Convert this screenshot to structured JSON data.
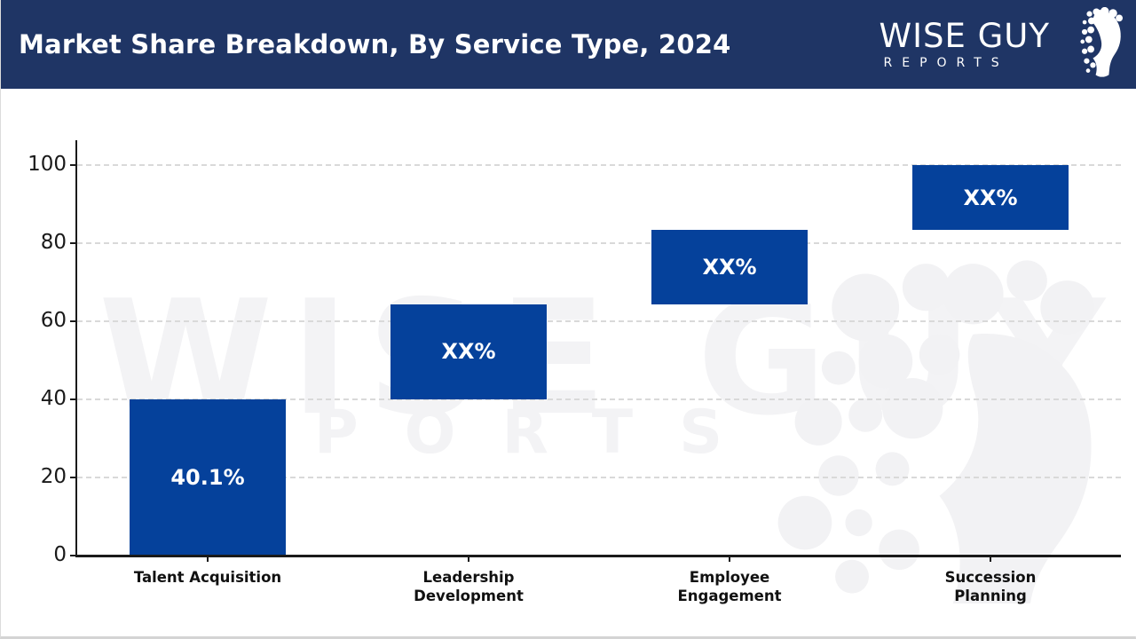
{
  "header": {
    "title": "Market Share Breakdown, By Service Type, 2024",
    "bg_color": "#1f3565",
    "logo": {
      "wordmark": "WISE GUY",
      "subtext": "REPORTS"
    }
  },
  "watermark": {
    "line1": "WISE GUY",
    "line2": "REPORTS"
  },
  "chart_data": {
    "type": "bar",
    "subtype": "waterfall",
    "title": "Market Share Breakdown, By Service Type, 2024",
    "xlabel": "",
    "ylabel": "",
    "ylim": [
      0,
      106
    ],
    "yticks": [
      0,
      20,
      40,
      60,
      80,
      100
    ],
    "grid": {
      "horizontal": true,
      "style": "dashed",
      "color": "#d9d9d9"
    },
    "legend": "none",
    "bar_color": "#05419b",
    "bar_label_color": "#ffffff",
    "categories": [
      "Talent Acquisition",
      "Leadership Development",
      "Employee Engagement",
      "Succession Planning"
    ],
    "category_lines": [
      [
        "Talent Acquisition"
      ],
      [
        "Leadership",
        "Development"
      ],
      [
        "Employee",
        "Engagement"
      ],
      [
        "Succession",
        "Planning"
      ]
    ],
    "segments": [
      {
        "category": "Talent Acquisition",
        "start": 0,
        "end": 40.1,
        "label": "40.1%"
      },
      {
        "category": "Leadership Development",
        "start": 40.1,
        "end": 64.4,
        "label": "XX%"
      },
      {
        "category": "Employee Engagement",
        "start": 64.4,
        "end": 83.3,
        "label": "XX%"
      },
      {
        "category": "Succession Planning",
        "start": 83.3,
        "end": 100,
        "label": "XX%"
      }
    ]
  }
}
